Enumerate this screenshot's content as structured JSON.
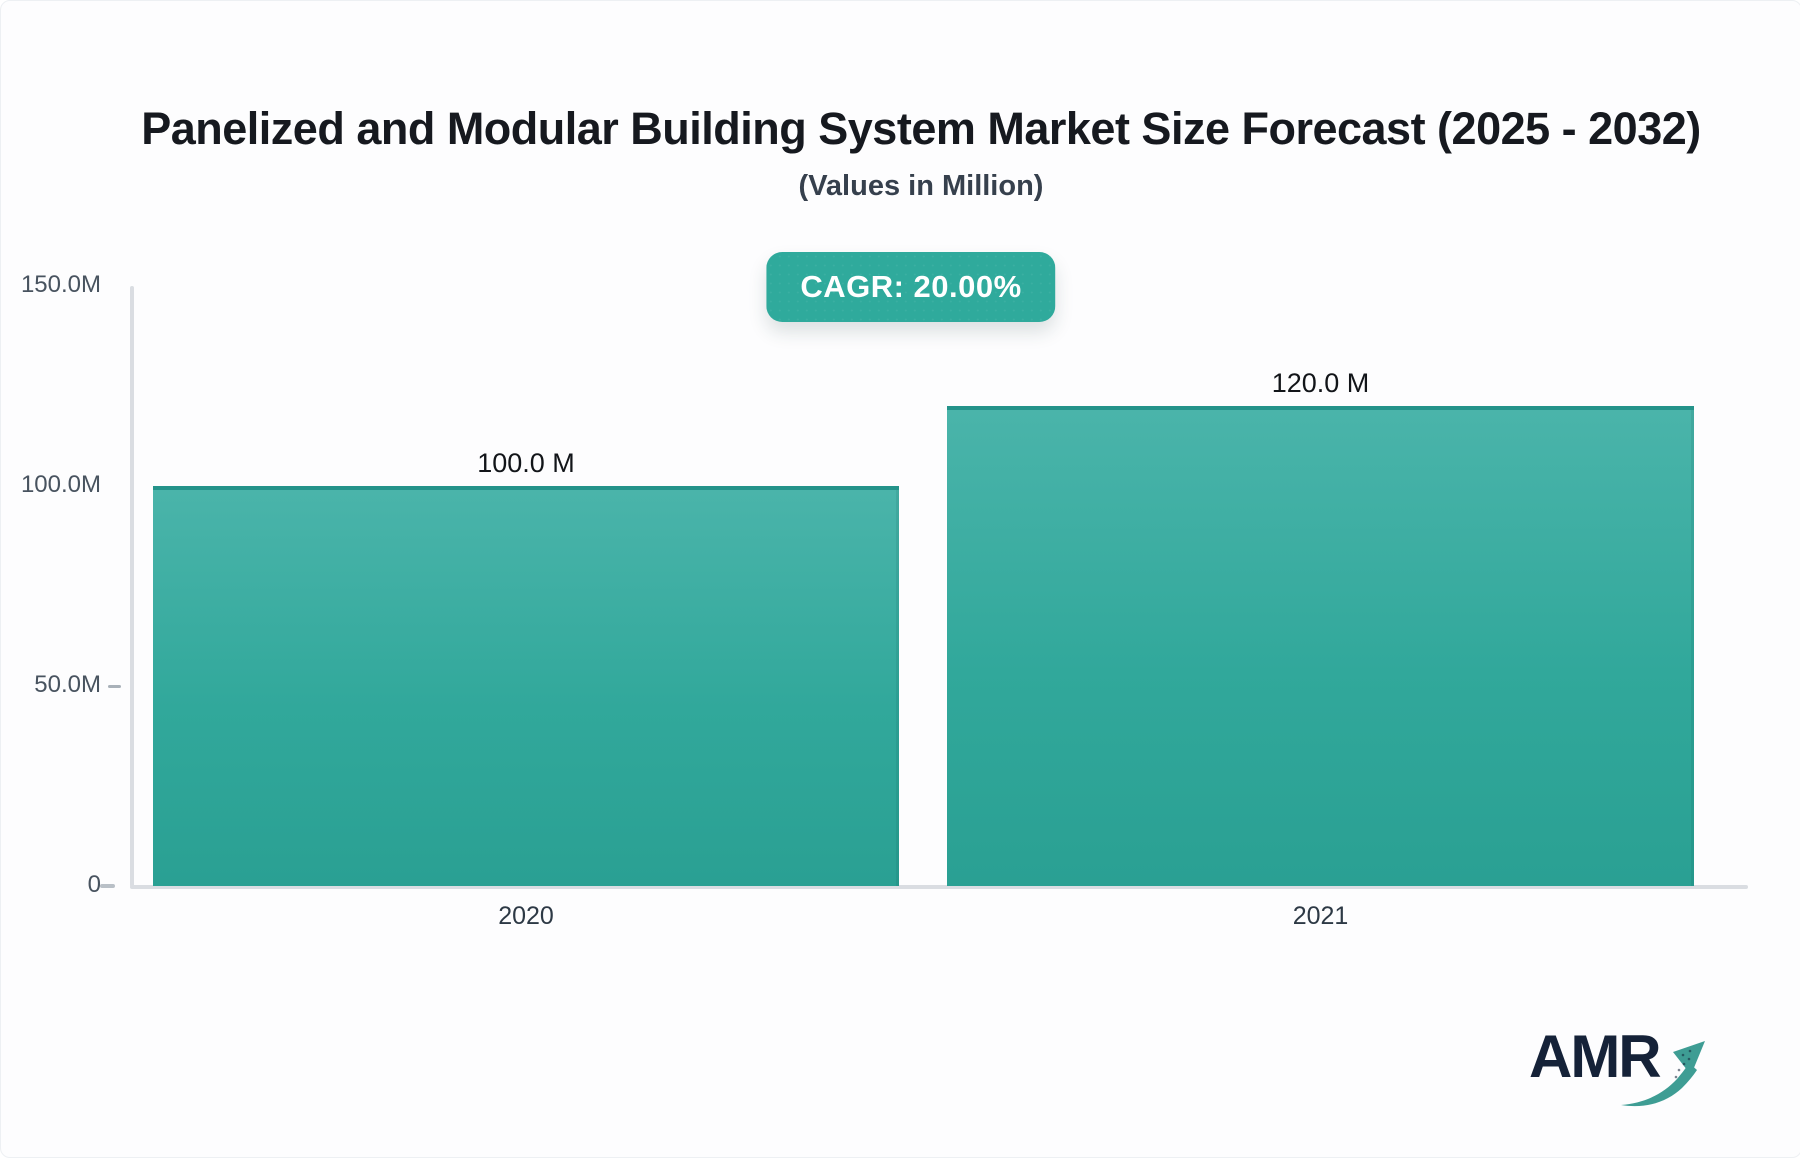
{
  "header": {
    "title": "Panelized and Modular Building System Market Size Forecast (2025 - 2032)",
    "subtitle": "(Values in Million)",
    "cagr_badge": "CAGR: 20.00%"
  },
  "chart_data": {
    "type": "bar",
    "title": "Panelized and Modular Building System Market Size Forecast (2025 - 2032)",
    "subtitle": "(Values in Million)",
    "cagr_percent": 20.0,
    "categories": [
      "2020",
      "2021"
    ],
    "values": [
      100,
      120
    ],
    "value_labels": [
      "100.0 M",
      "120.0 M"
    ],
    "unit": "Million",
    "ylim": [
      0,
      150
    ],
    "yticks": [
      {
        "label": "150.0M",
        "value": 150
      },
      {
        "label": "100.0M",
        "value": 100
      },
      {
        "label": "50.0M",
        "value": 50
      },
      {
        "label": "0",
        "value": 0
      }
    ],
    "grid": false,
    "legend": "none",
    "bar_color": "#2faa9c"
  },
  "branding": {
    "logo_text": "AMR",
    "logo_arrow_icon": "upward-trend-arrow"
  },
  "colors": {
    "accent_teal": "#2faa9c",
    "bar_gradient_top": "#4ab4aa",
    "bar_gradient_bottom": "#2aa093",
    "bar_top_edge": "#24938a",
    "axis_line": "#dadde2",
    "title_text": "#16191f",
    "subtitle_text": "#36404d",
    "axis_text": "#48535f",
    "year_text": "#2d3945",
    "value_text": "#121519",
    "logo_navy": "#152238",
    "background": "#fdfdfe"
  }
}
